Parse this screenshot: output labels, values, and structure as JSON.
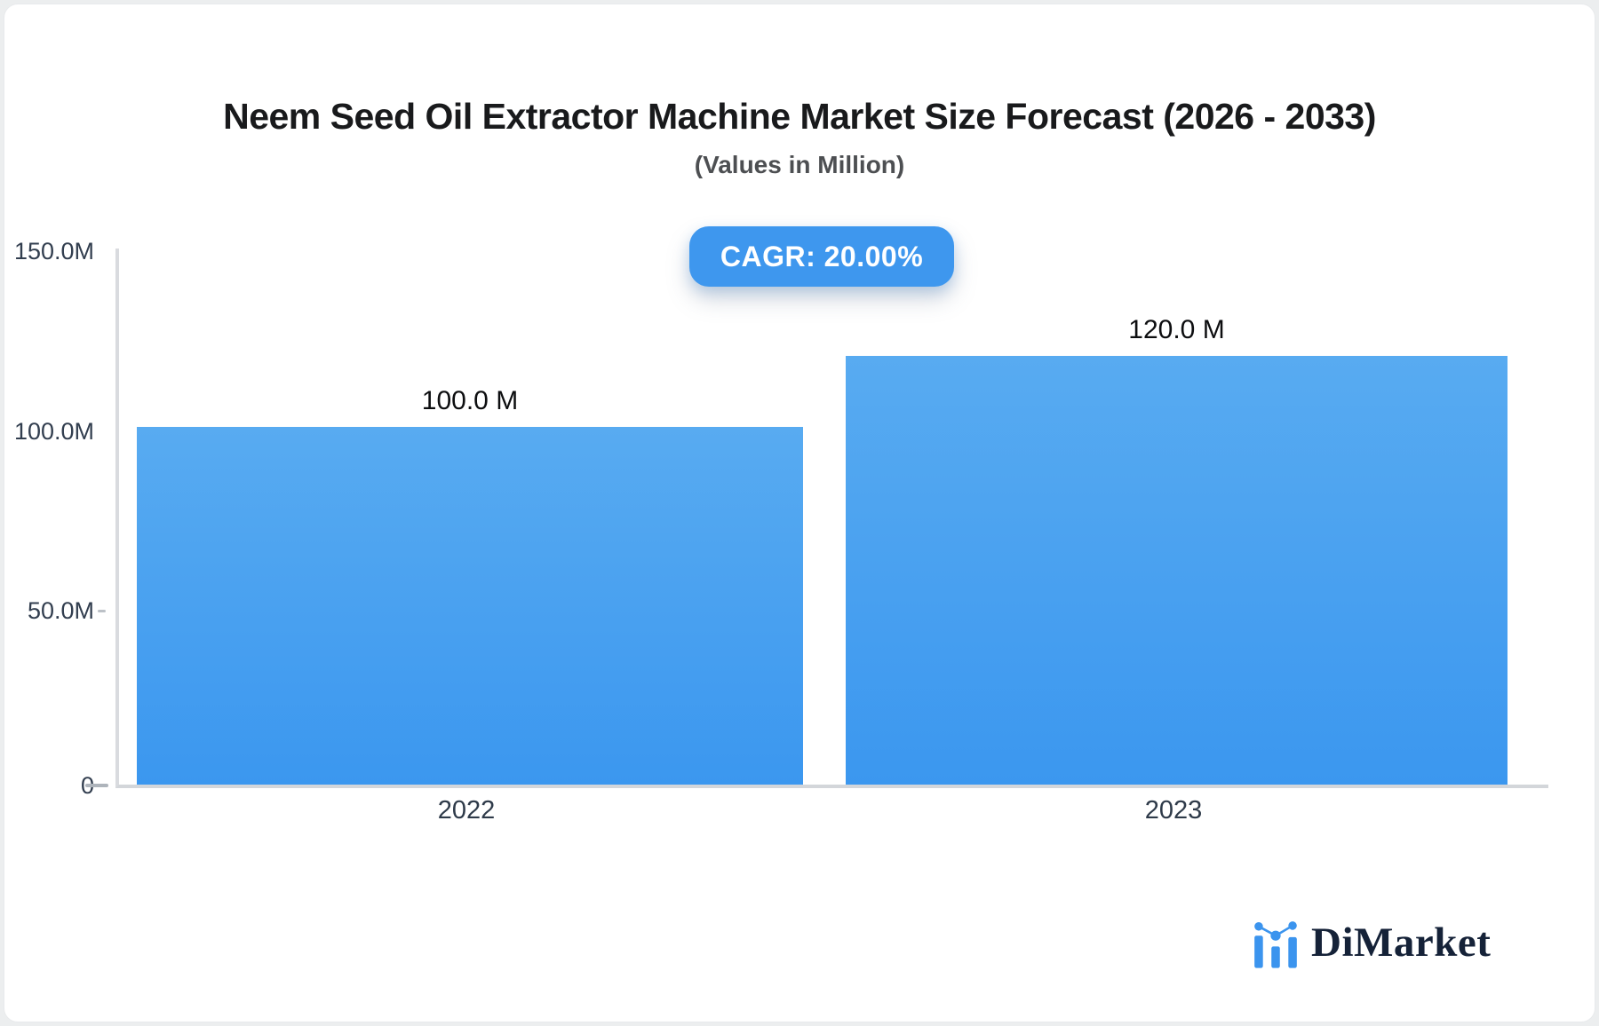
{
  "header": {
    "cagr_badge": "CAGR: 20.00%"
  },
  "chart_data": {
    "type": "bar",
    "title": "Neem Seed Oil Extractor Machine Market Size Forecast (2026 - 2033)",
    "subtitle": "(Values in Million)",
    "unit": "Million",
    "categories": [
      "2022",
      "2023"
    ],
    "values": [
      100.0,
      120.0
    ],
    "value_labels": [
      "100.0 M",
      "120.0 M"
    ],
    "cagr_percent": "20.00%",
    "ylim": [
      0,
      150
    ],
    "ytick_labels": [
      "0",
      "50.0M",
      "100.0M",
      "150.0M"
    ],
    "grid": false,
    "legend_position": "none",
    "bar_color_top": "#58abf1",
    "bar_color_bottom": "#3b97ef"
  },
  "colors": {
    "accent": "#3e97ee",
    "axis_line": "#d6d8dc",
    "title_text": "#191a1c",
    "logo_navy": "#152238",
    "logo_blue": "#3b94ee"
  },
  "branding": {
    "logo_text": "DiMarket"
  }
}
